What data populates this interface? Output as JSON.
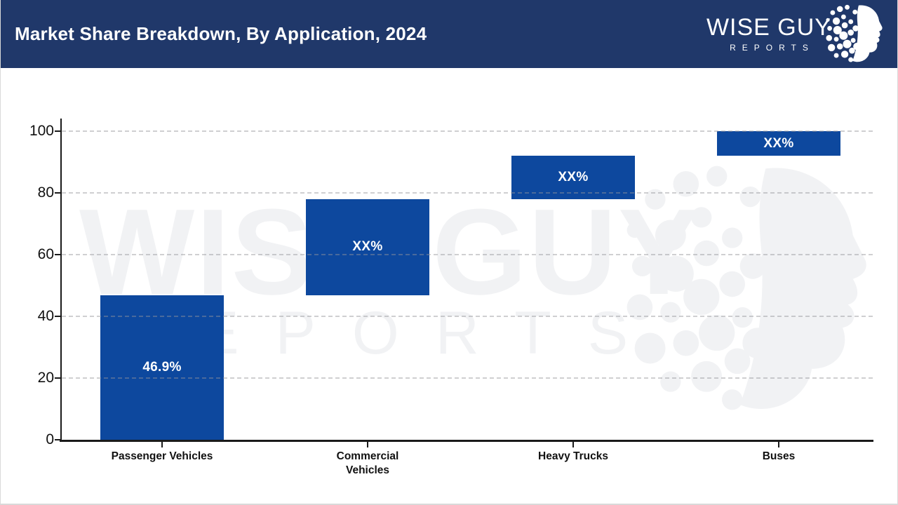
{
  "header": {
    "title": "Market Share Breakdown, By Application, 2024",
    "bg_color": "#20386a",
    "logo": {
      "line1": "WISE GUY",
      "line2": "REPORTS"
    }
  },
  "watermark": {
    "line1": "WISE GUY",
    "line2": "REPORTS"
  },
  "chart_data": {
    "type": "bar",
    "variant": "waterfall",
    "title": "Market Share Breakdown, By Application, 2024",
    "categories": [
      {
        "label": "Passenger Vehicles",
        "lines": [
          "Passenger Vehicles"
        ]
      },
      {
        "label": "Commercial Vehicles",
        "lines": [
          "Commercial",
          "Vehicles"
        ]
      },
      {
        "label": "Heavy Trucks",
        "lines": [
          "Heavy Trucks"
        ]
      },
      {
        "label": "Buses",
        "lines": [
          "Buses"
        ]
      }
    ],
    "series": [
      {
        "name": "Market Share (%)",
        "segments": [
          {
            "start": 0,
            "end": 46.9,
            "increment": 46.9,
            "label": "46.9%"
          },
          {
            "start": 46.9,
            "end": 78,
            "increment": 31.1,
            "label": "XX%"
          },
          {
            "start": 78,
            "end": 92,
            "increment": 14,
            "label": "XX%"
          },
          {
            "start": 92,
            "end": 100,
            "increment": 8,
            "label": "XX%"
          }
        ]
      }
    ],
    "bar_labels": [
      "46.9%",
      "XX%",
      "XX%",
      "XX%"
    ],
    "bar_color": "#0d489e",
    "label_color": "#ffffff",
    "xlabel": "",
    "ylabel": "",
    "ylim": [
      0,
      100
    ],
    "yticks": [
      0,
      20,
      40,
      60,
      80,
      100
    ],
    "grid": "horizontal-dashed",
    "legend": "none"
  }
}
